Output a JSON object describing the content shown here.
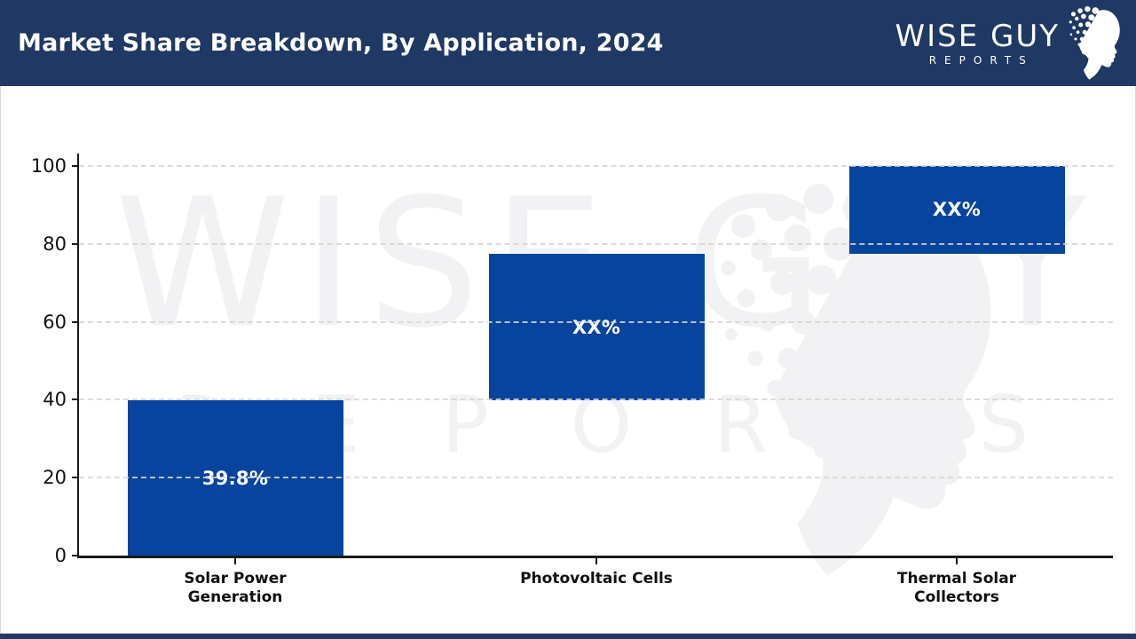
{
  "header": {
    "title": "Market Share Breakdown, By Application, 2024",
    "bg_color": "#1f3864",
    "logo": {
      "line1": "WISE GUY",
      "line2": "REPORTS"
    }
  },
  "watermark": {
    "line1": "WISE GUY",
    "line2": "R E P O R T S"
  },
  "chart_data": {
    "type": "bar",
    "subtype": "floating-waterfall",
    "title": "Market Share Breakdown, By Application, 2024",
    "categories": [
      "Solar Power\nGeneration",
      "Photovoltaic Cells",
      "Thermal Solar\nCollectors"
    ],
    "bars": [
      {
        "category": "Solar Power Generation",
        "base": 0,
        "top": 39.8,
        "label": "39.8%"
      },
      {
        "category": "Photovoltaic Cells",
        "base": 39.8,
        "top": 77.5,
        "label": "XX%"
      },
      {
        "category": "Thermal Solar Collectors",
        "base": 77.5,
        "top": 100,
        "label": "XX%"
      }
    ],
    "bar_color": "#07449e",
    "label_color": "#ffffff",
    "xlabel": "",
    "ylabel": "",
    "ylim": [
      0,
      100
    ],
    "yticks": [
      0,
      20,
      40,
      60,
      80,
      100
    ],
    "grid": "horizontal-dashed",
    "gridline_color": "#d9d9d9",
    "axis_color": "#1a1a1a",
    "legend": "none"
  },
  "footer": {
    "bg_color": "#1f3864"
  }
}
